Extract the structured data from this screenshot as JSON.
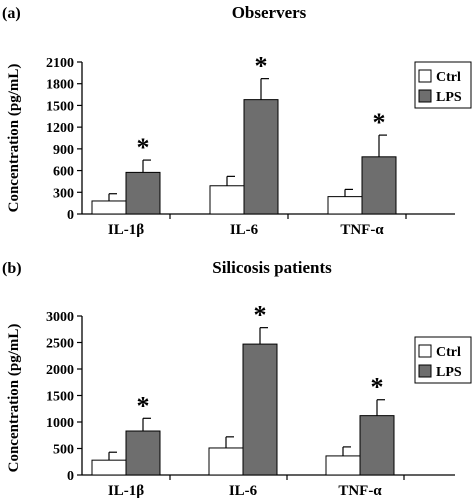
{
  "panels_meta": {
    "colors": {
      "ctrl": "#ffffff",
      "lps": "#6e6e6e",
      "axis": "#000000",
      "background": "#ffffff"
    }
  },
  "chart_data": [
    {
      "type": "bar",
      "panel_label": "(a)",
      "title": "Observers",
      "xlabel": "",
      "ylabel": "Concentration (pg/mL)",
      "ylim": [
        0,
        2100
      ],
      "yticks": [
        0,
        300,
        600,
        900,
        1200,
        1500,
        1800,
        2100
      ],
      "categories": [
        "IL-1β",
        "IL-6",
        "TNF-α"
      ],
      "series": [
        {
          "name": "Ctrl",
          "values": [
            180,
            390,
            240
          ],
          "errors": [
            100,
            130,
            100
          ]
        },
        {
          "name": "LPS",
          "values": [
            575,
            1580,
            790
          ],
          "errors": [
            170,
            290,
            300
          ]
        }
      ],
      "significance": [
        "*",
        "*",
        "*"
      ],
      "legend": "top-right",
      "grid": false
    },
    {
      "type": "bar",
      "panel_label": "(b)",
      "title": "Silicosis patients",
      "xlabel": "",
      "ylabel": "Concentration (pg/mL)",
      "ylim": [
        0,
        3000
      ],
      "yticks": [
        0,
        500,
        1000,
        1500,
        2000,
        2500,
        3000
      ],
      "categories": [
        "IL-1β",
        "IL-6",
        "TNF-α"
      ],
      "series": [
        {
          "name": "Ctrl",
          "values": [
            280,
            510,
            360
          ],
          "errors": [
            150,
            210,
            170
          ]
        },
        {
          "name": "LPS",
          "values": [
            830,
            2470,
            1120
          ],
          "errors": [
            240,
            310,
            300
          ]
        }
      ],
      "significance": [
        "*",
        "*",
        "*"
      ],
      "legend": "top-right",
      "grid": false
    }
  ]
}
